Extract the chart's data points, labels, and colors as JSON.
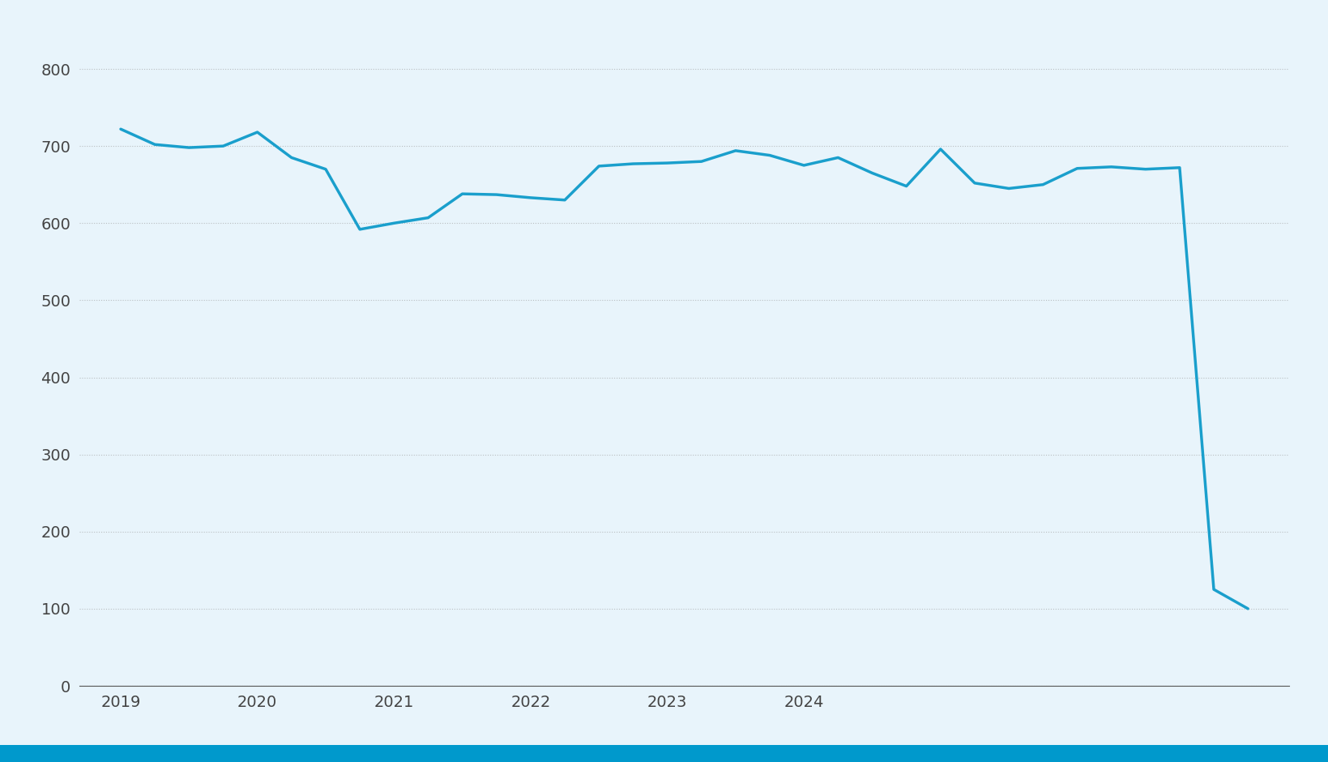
{
  "y": [
    722,
    702,
    698,
    700,
    718,
    685,
    670,
    592,
    600,
    607,
    638,
    637,
    633,
    630,
    674,
    677,
    678,
    680,
    694,
    688,
    675,
    685,
    665,
    648,
    696,
    652,
    645,
    650,
    671,
    673,
    670,
    672,
    125,
    100
  ],
  "x_tick_positions": [
    0,
    1,
    2,
    3,
    4,
    5
  ],
  "x_tick_labels": [
    "2019",
    "2020",
    "2021",
    "2022",
    "2023",
    "2024"
  ],
  "y_ticks": [
    0,
    100,
    200,
    300,
    400,
    500,
    600,
    700,
    800
  ],
  "ylim": [
    0,
    840
  ],
  "line_color": "#1a9fcc",
  "line_width": 2.5,
  "background_color": "#e8f4fb",
  "grid_color": "#999999",
  "bar_color": "#0099cc"
}
